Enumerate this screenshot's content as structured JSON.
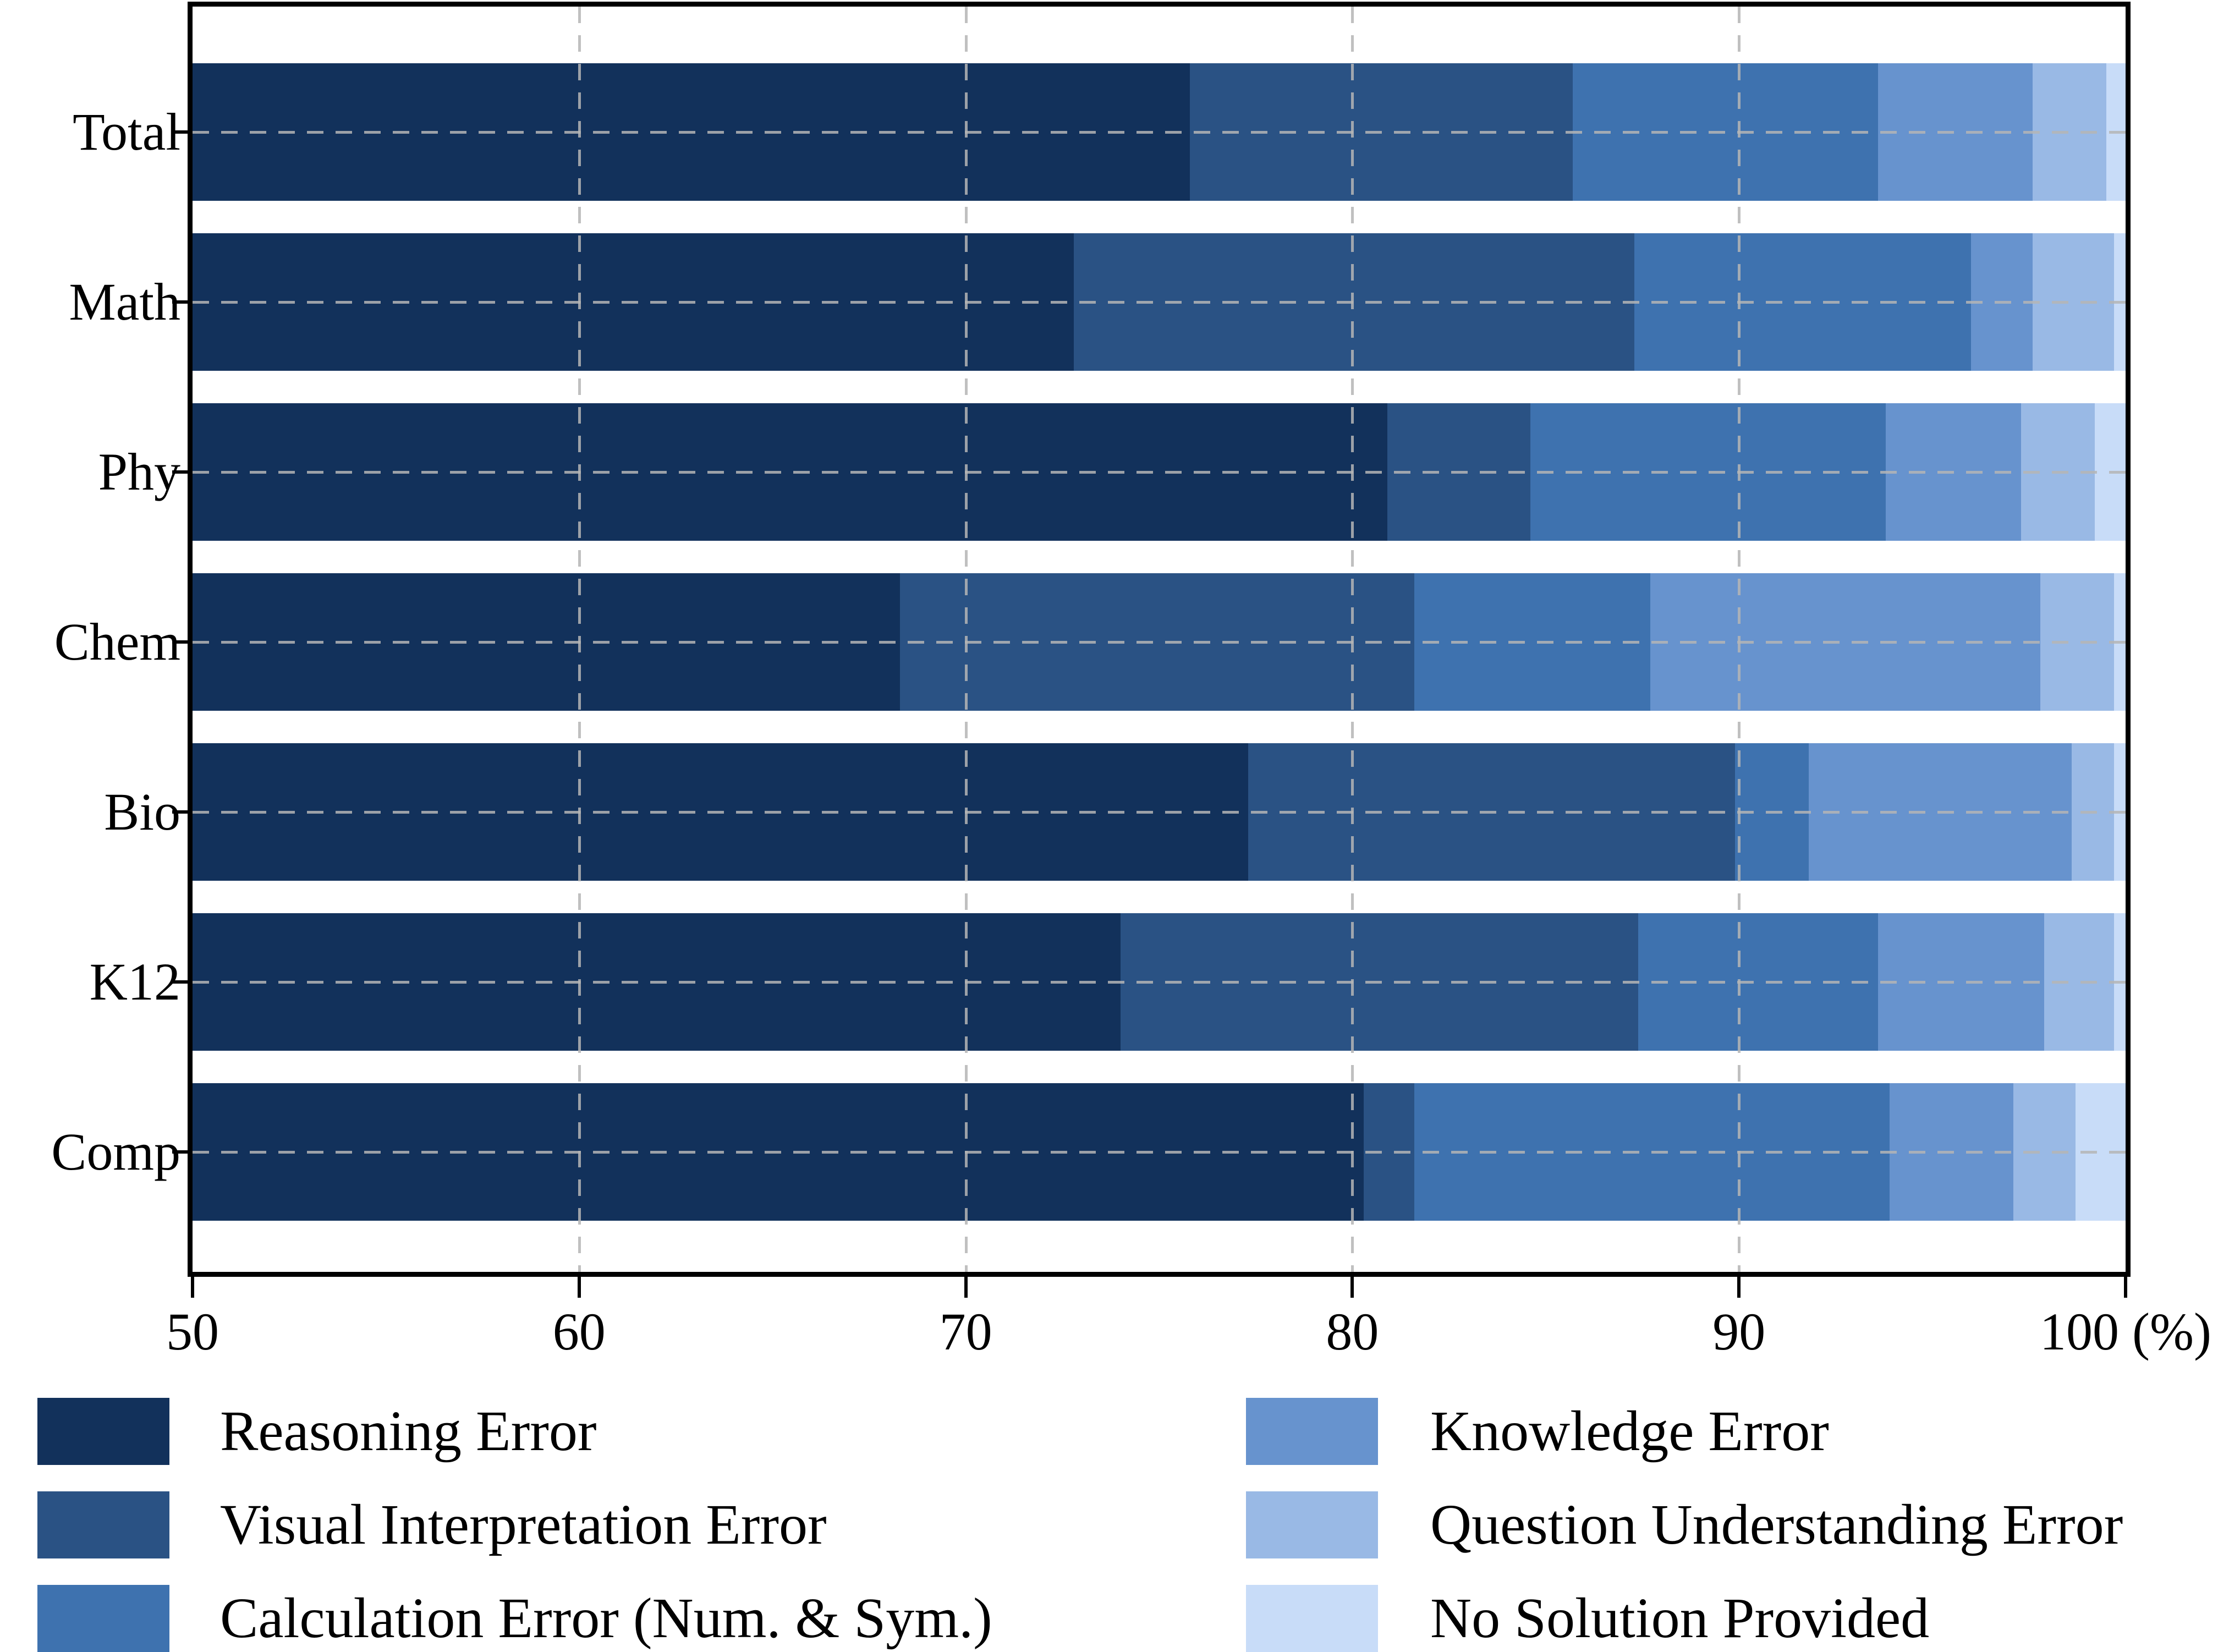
{
  "figure": {
    "background": "#ffffff",
    "axis": {
      "xmin": 50,
      "xmax": 100,
      "unit_suffix": "(%)",
      "ticks": [
        50,
        60,
        70,
        80,
        90,
        100
      ],
      "tick_labels": [
        "50",
        "60",
        "70",
        "80",
        "90",
        "100 (%)"
      ],
      "grid": "dashed",
      "grid_color": "#b5b5b5",
      "spine_color": "#000000"
    },
    "legend": {
      "position": "below-chart",
      "columns": 2,
      "column1": [
        "Reasoning Error",
        "Visual Interpretation Error",
        "Calculation Error (Num. & Sym.)"
      ],
      "column2": [
        "Knowledge Error",
        "Question Understanding Error",
        "No Solution Provided"
      ]
    }
  },
  "chart_data": {
    "type": "bar",
    "orientation": "horizontal",
    "stacked": true,
    "unit": "%",
    "xlim": [
      50,
      100
    ],
    "xlabel": "(%)",
    "ylabel": "",
    "title": "",
    "categories": [
      "Total",
      "Math",
      "Phy",
      "Chem",
      "Bio",
      "K12",
      "Comp"
    ],
    "series": [
      {
        "name": "Reasoning Error",
        "color": "#12315b",
        "values": [
          75.8,
          72.8,
          80.9,
          68.3,
          77.3,
          74.0,
          80.3
        ]
      },
      {
        "name": "Visual Interpretation Error",
        "color": "#2a5284",
        "values": [
          9.9,
          14.5,
          3.7,
          13.3,
          12.6,
          13.4,
          1.3
        ]
      },
      {
        "name": "Calculation Error (Num. & Sym.)",
        "color": "#3e72af",
        "values": [
          7.9,
          8.7,
          9.2,
          6.1,
          1.9,
          6.2,
          12.3
        ]
      },
      {
        "name": "Knowledge Error",
        "color": "#6793ce",
        "values": [
          4.0,
          1.6,
          3.5,
          10.1,
          6.8,
          4.3,
          3.2
        ]
      },
      {
        "name": "Question Understanding Error",
        "color": "#99b9e5",
        "values": [
          1.9,
          2.1,
          1.9,
          1.9,
          1.1,
          1.8,
          1.6
        ]
      },
      {
        "name": "No Solution Provided",
        "color": "#c8dcf8",
        "values": [
          0.5,
          0.3,
          0.8,
          0.3,
          0.3,
          0.3,
          1.3
        ]
      }
    ],
    "legend_entries": [
      "Reasoning Error",
      "Visual Interpretation Error",
      "Calculation Error (Num. & Sym.)",
      "Knowledge Error",
      "Question Understanding Error",
      "No Solution Provided"
    ],
    "legend_position": "bottom",
    "gridlines_at": [
      60,
      70,
      80,
      90,
      100
    ]
  }
}
